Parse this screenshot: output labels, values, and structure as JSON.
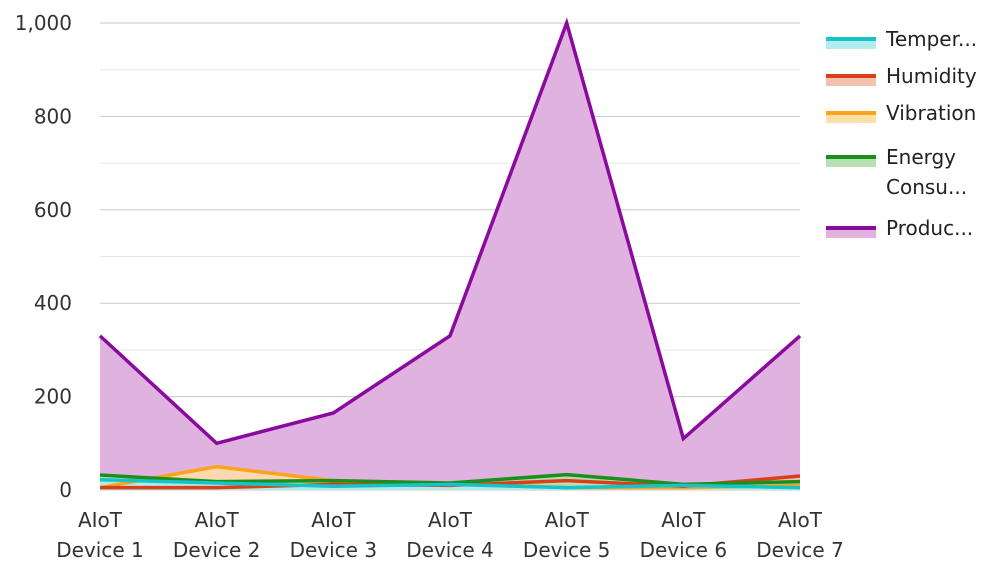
{
  "chart_data": {
    "type": "area",
    "title": "",
    "xlabel": "",
    "ylabel": "",
    "categories": [
      [
        "AIoT",
        "Device 1"
      ],
      [
        "AIoT",
        "Device 2"
      ],
      [
        "AIoT",
        "Device 3"
      ],
      [
        "AIoT",
        "Device 4"
      ],
      [
        "AIoT",
        "Device 5"
      ],
      [
        "AIoT",
        "Device 6"
      ],
      [
        "AIoT",
        "Device 7"
      ]
    ],
    "ylim": [
      0,
      1000
    ],
    "yticks": [
      0,
      200,
      400,
      600,
      800,
      1000
    ],
    "ytick_labels": [
      "0",
      "200",
      "400",
      "600",
      "800",
      "1,000"
    ],
    "grid": true,
    "legend_position": "right",
    "series": [
      {
        "name": "Temper...",
        "color": "#17c3cb",
        "fill": "#b2ecee",
        "values": [
          22,
          15,
          8,
          12,
          5,
          10,
          5
        ]
      },
      {
        "name": "Humidity",
        "color": "#d9401a",
        "fill": "#f2c2b0",
        "values": [
          5,
          5,
          12,
          10,
          20,
          8,
          30
        ]
      },
      {
        "name": "Vibration",
        "color": "#ffa31a",
        "fill": "#ffdfa8",
        "values": [
          5,
          50,
          20,
          15,
          5,
          5,
          10
        ]
      },
      {
        "name": [
          "Energy",
          "Consu..."
        ],
        "color": "#1a8f1a",
        "fill": "#b7dfb4",
        "values": [
          32,
          18,
          20,
          15,
          33,
          12,
          18
        ]
      },
      {
        "name": "Produc...",
        "color": "#8b0a9e",
        "fill": "#dfb2df",
        "values": [
          330,
          100,
          165,
          330,
          1000,
          110,
          330
        ]
      }
    ]
  }
}
